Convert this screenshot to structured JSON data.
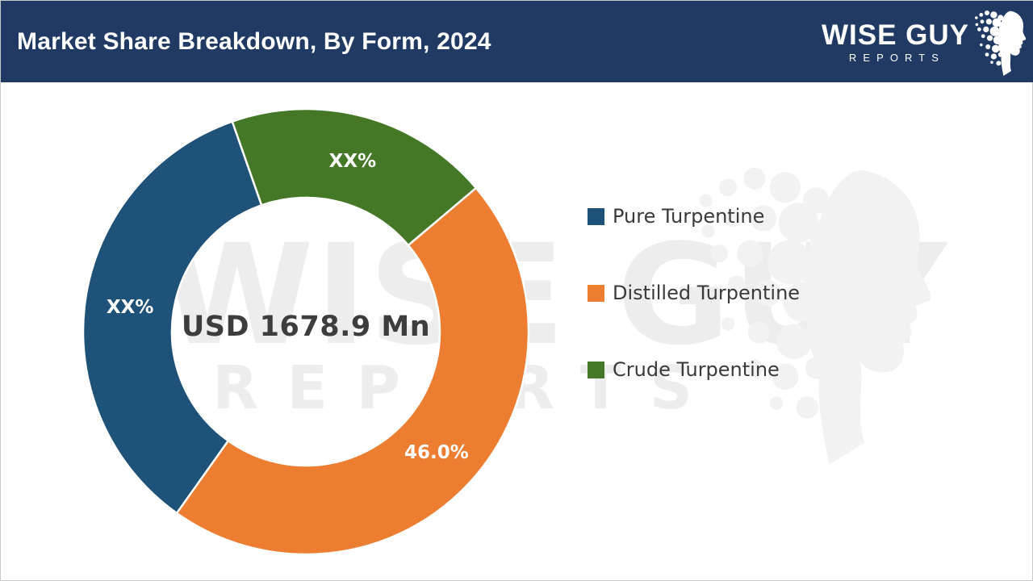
{
  "header": {
    "title": "Market Share Breakdown, By Form, 2024",
    "logo": {
      "wordmark": "WISE GUY",
      "subtitle": "REPORTS"
    }
  },
  "watermark": {
    "wordmark": "WISE GUY",
    "subtitle": "REPORTS"
  },
  "colors": {
    "header_bg": "#203a64",
    "pure": "#1f5278",
    "distilled": "#ed7d31",
    "crude": "#457826",
    "slice_gap": "#ffffff",
    "slice_label_text": "#ffffff",
    "center_text": "#3d3d3d",
    "legend_text": "#3a3a3a",
    "watermark": "#ededed",
    "watermark_face": "#f2f2f2"
  },
  "chart_data": {
    "type": "pie",
    "subtype": "donut",
    "title": "Market Share Breakdown, By Form, 2024",
    "center_label": "USD 1678.9 Mn",
    "start_angle_deg": 109.3,
    "direction": "counterclockwise",
    "legend_position": "right",
    "slices": [
      {
        "label": "Pure Turpentine",
        "display_value": "XX%",
        "value_pct": 34.8,
        "color_key": "pure"
      },
      {
        "label": "Distilled Turpentine",
        "display_value": "46.0%",
        "value_pct": 46.0,
        "color_key": "distilled"
      },
      {
        "label": "Crude Turpentine",
        "display_value": "XX%",
        "value_pct": 19.2,
        "color_key": "crude"
      }
    ]
  }
}
